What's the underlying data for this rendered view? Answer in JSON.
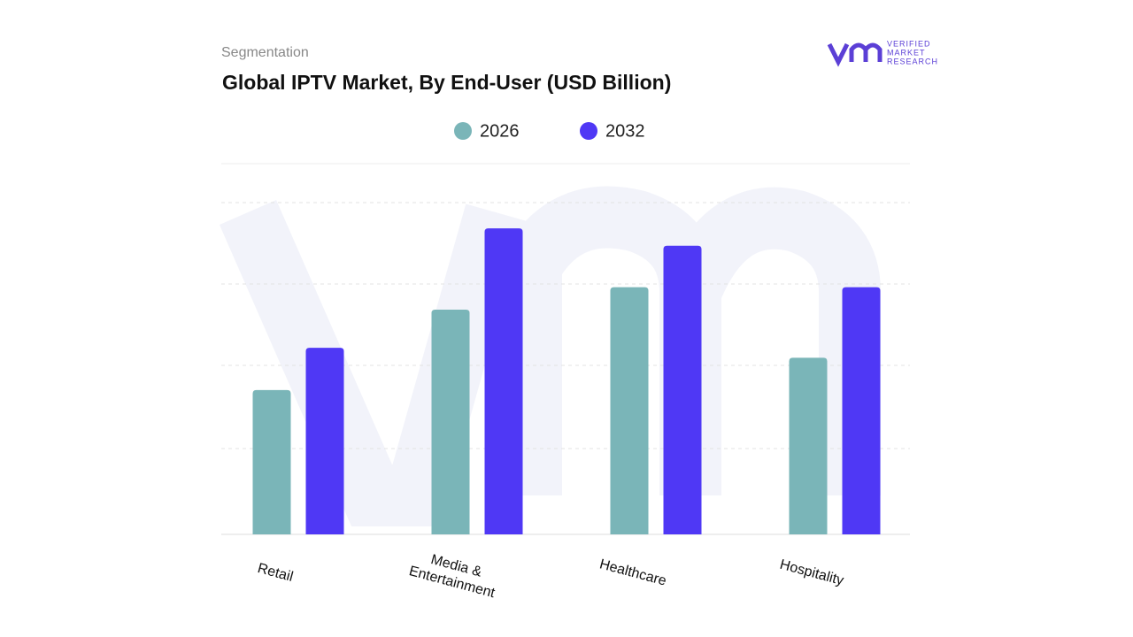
{
  "chart_data": {
    "type": "bar",
    "subtitle": "Segmentation",
    "title": "Global IPTV Market, By End-User (USD Billion)",
    "categories": [
      "Retail",
      "Media & Entertainment",
      "Healthcare",
      "Hospitality"
    ],
    "series": [
      {
        "name": "2026",
        "color": "#7ab5b8",
        "values": [
          1.74,
          2.71,
          2.98,
          2.13
        ]
      },
      {
        "name": "2032",
        "color": "#4f38f5",
        "values": [
          2.25,
          3.69,
          3.48,
          2.98
        ]
      }
    ],
    "ylim": [
      0,
      4
    ]
  },
  "logo": {
    "lines": [
      "VERIFIED",
      "MARKET",
      "RESEARCH"
    ]
  }
}
